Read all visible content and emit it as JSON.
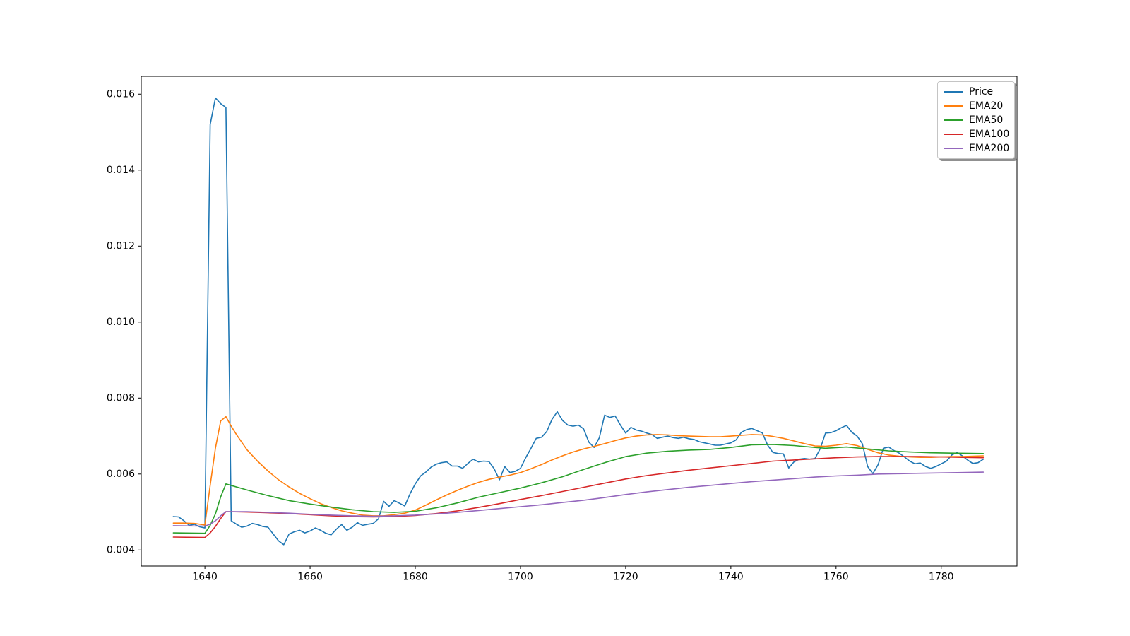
{
  "figure": {
    "background": "#ffffff",
    "axis_color": "#000000"
  },
  "chart_data": {
    "type": "line",
    "title": "",
    "xlabel": "",
    "ylabel": "",
    "grid": false,
    "legend_position": "upper right",
    "xlim": [
      1627.9,
      1794.4
    ],
    "ylim": [
      0.003578,
      0.01647
    ],
    "x_ticks": [
      1640,
      1660,
      1680,
      1700,
      1720,
      1740,
      1760,
      1780
    ],
    "y_ticks": [
      0.004,
      0.006,
      0.008,
      0.01,
      0.012,
      0.014,
      0.016
    ],
    "y_tick_labels": [
      "0.004",
      "0.006",
      "0.008",
      "0.010",
      "0.012",
      "0.014",
      "0.016"
    ],
    "series": [
      {
        "name": "Price",
        "color": "#1f77b4",
        "x0": 1634,
        "dx": 1,
        "values": [
          0.00488,
          0.00487,
          0.00477,
          0.00465,
          0.00468,
          0.00461,
          0.00458,
          0.0152,
          0.0159,
          0.01575,
          0.01565,
          0.00477,
          0.00468,
          0.0046,
          0.00463,
          0.0047,
          0.00467,
          0.00462,
          0.0046,
          0.00442,
          0.00424,
          0.00414,
          0.00442,
          0.00448,
          0.00452,
          0.00445,
          0.0045,
          0.00458,
          0.00452,
          0.00444,
          0.0044,
          0.00455,
          0.00467,
          0.00452,
          0.0046,
          0.00472,
          0.00465,
          0.00468,
          0.0047,
          0.00482,
          0.00528,
          0.00515,
          0.0053,
          0.00523,
          0.00516,
          0.00548,
          0.00574,
          0.00595,
          0.00605,
          0.00618,
          0.00626,
          0.0063,
          0.00632,
          0.00621,
          0.00621,
          0.00615,
          0.00628,
          0.00639,
          0.00632,
          0.00634,
          0.00633,
          0.00614,
          0.00585,
          0.0062,
          0.00604,
          0.00607,
          0.00615,
          0.00643,
          0.00668,
          0.00694,
          0.00697,
          0.00712,
          0.00744,
          0.00764,
          0.00741,
          0.00729,
          0.00726,
          0.00729,
          0.00719,
          0.00684,
          0.0067,
          0.00696,
          0.00755,
          0.00749,
          0.00753,
          0.00729,
          0.00708,
          0.00723,
          0.00716,
          0.00713,
          0.00708,
          0.00704,
          0.00694,
          0.00697,
          0.007,
          0.00696,
          0.00694,
          0.00697,
          0.00693,
          0.00691,
          0.00685,
          0.00682,
          0.00679,
          0.00676,
          0.00676,
          0.00679,
          0.00682,
          0.0069,
          0.0071,
          0.00717,
          0.0072,
          0.00714,
          0.00708,
          0.00676,
          0.00657,
          0.00654,
          0.00653,
          0.00616,
          0.00632,
          0.00639,
          0.00641,
          0.00639,
          0.00641,
          0.00667,
          0.00708,
          0.00709,
          0.00714,
          0.00722,
          0.00728,
          0.0071,
          0.007,
          0.0068,
          0.0062,
          0.00601,
          0.00625,
          0.00668,
          0.00671,
          0.00662,
          0.00655,
          0.00645,
          0.00634,
          0.00627,
          0.00629,
          0.0062,
          0.00615,
          0.0062,
          0.00627,
          0.00634,
          0.0065,
          0.00657,
          0.00648,
          0.00637,
          0.00628,
          0.0063,
          0.00639
        ]
      },
      {
        "name": "EMA20",
        "color": "#ff7f0e",
        "x": [
          1634,
          1636,
          1638,
          1639,
          1640,
          1641,
          1642,
          1643,
          1644,
          1645,
          1646,
          1648,
          1650,
          1652,
          1654,
          1656,
          1658,
          1660,
          1662,
          1664,
          1666,
          1668,
          1670,
          1672,
          1674,
          1676,
          1678,
          1680,
          1682,
          1684,
          1686,
          1688,
          1690,
          1692,
          1694,
          1696,
          1698,
          1700,
          1702,
          1704,
          1706,
          1708,
          1710,
          1712,
          1714,
          1716,
          1718,
          1720,
          1722,
          1724,
          1726,
          1728,
          1730,
          1732,
          1734,
          1736,
          1738,
          1740,
          1742,
          1744,
          1746,
          1748,
          1750,
          1752,
          1754,
          1756,
          1758,
          1760,
          1762,
          1764,
          1766,
          1768,
          1770,
          1772,
          1774,
          1776,
          1778,
          1780,
          1782,
          1784,
          1786,
          1788
        ],
        "values": [
          0.00471,
          0.00471,
          0.0047,
          0.00468,
          0.00466,
          0.0057,
          0.00668,
          0.0074,
          0.00751,
          0.00726,
          0.00704,
          0.00664,
          0.00634,
          0.00608,
          0.00585,
          0.00566,
          0.00549,
          0.00535,
          0.00522,
          0.00512,
          0.00503,
          0.00497,
          0.00492,
          0.0049,
          0.0049,
          0.00493,
          0.00497,
          0.00505,
          0.00518,
          0.00532,
          0.00545,
          0.00557,
          0.00568,
          0.00578,
          0.00586,
          0.00592,
          0.00597,
          0.00604,
          0.00614,
          0.00625,
          0.00637,
          0.00648,
          0.00658,
          0.00666,
          0.00673,
          0.0068,
          0.00688,
          0.00695,
          0.007,
          0.00703,
          0.00704,
          0.00703,
          0.00701,
          0.007,
          0.00699,
          0.00698,
          0.00698,
          0.007,
          0.00702,
          0.00704,
          0.00703,
          0.00699,
          0.00694,
          0.00687,
          0.0068,
          0.00674,
          0.00673,
          0.00676,
          0.0068,
          0.00675,
          0.00665,
          0.00656,
          0.0065,
          0.00647,
          0.00645,
          0.00644,
          0.00644,
          0.00645,
          0.00646,
          0.00646,
          0.00647,
          0.00648
        ]
      },
      {
        "name": "EMA50",
        "color": "#2ca02c",
        "x": [
          1634,
          1640,
          1641,
          1642,
          1643,
          1644,
          1648,
          1652,
          1656,
          1660,
          1664,
          1668,
          1672,
          1676,
          1680,
          1684,
          1688,
          1692,
          1696,
          1700,
          1704,
          1708,
          1712,
          1716,
          1720,
          1724,
          1728,
          1732,
          1736,
          1740,
          1744,
          1748,
          1752,
          1756,
          1758,
          1762,
          1766,
          1770,
          1774,
          1778,
          1782,
          1788
        ],
        "values": [
          0.00445,
          0.00444,
          0.00465,
          0.00495,
          0.0054,
          0.00574,
          0.00558,
          0.00543,
          0.0053,
          0.00521,
          0.00513,
          0.00506,
          0.00501,
          0.00499,
          0.00502,
          0.00511,
          0.00524,
          0.00539,
          0.00551,
          0.00563,
          0.00577,
          0.00593,
          0.00612,
          0.0063,
          0.00646,
          0.00655,
          0.0066,
          0.00663,
          0.00665,
          0.0067,
          0.00677,
          0.00678,
          0.00675,
          0.0067,
          0.00668,
          0.00671,
          0.00666,
          0.00661,
          0.00658,
          0.00656,
          0.00655,
          0.00654
        ]
      },
      {
        "name": "EMA100",
        "color": "#d62728",
        "x": [
          1634,
          1640,
          1641,
          1642,
          1643,
          1644,
          1648,
          1652,
          1656,
          1660,
          1664,
          1668,
          1672,
          1676,
          1680,
          1684,
          1688,
          1692,
          1696,
          1700,
          1704,
          1708,
          1712,
          1716,
          1720,
          1724,
          1728,
          1732,
          1736,
          1740,
          1744,
          1748,
          1752,
          1756,
          1760,
          1764,
          1768,
          1772,
          1776,
          1780,
          1784,
          1788
        ],
        "values": [
          0.00434,
          0.00433,
          0.00445,
          0.00462,
          0.00483,
          0.00501,
          0.005,
          0.00498,
          0.00496,
          0.00493,
          0.0049,
          0.00488,
          0.00487,
          0.00488,
          0.00491,
          0.00496,
          0.00503,
          0.00512,
          0.00522,
          0.00533,
          0.00543,
          0.00554,
          0.00565,
          0.00576,
          0.00587,
          0.00596,
          0.00603,
          0.0061,
          0.00616,
          0.00622,
          0.00628,
          0.00634,
          0.00637,
          0.0064,
          0.00643,
          0.00645,
          0.00646,
          0.00646,
          0.00646,
          0.00645,
          0.00644,
          0.00643
        ]
      },
      {
        "name": "EMA200",
        "color": "#9467bd",
        "x": [
          1634,
          1640,
          1641,
          1642,
          1643,
          1644,
          1648,
          1652,
          1656,
          1660,
          1664,
          1668,
          1672,
          1676,
          1680,
          1684,
          1688,
          1692,
          1696,
          1700,
          1704,
          1708,
          1712,
          1716,
          1720,
          1724,
          1728,
          1732,
          1736,
          1740,
          1744,
          1748,
          1752,
          1756,
          1760,
          1764,
          1768,
          1772,
          1776,
          1780,
          1784,
          1788
        ],
        "values": [
          0.00464,
          0.00463,
          0.00468,
          0.00477,
          0.0049,
          0.00501,
          0.00501,
          0.00499,
          0.00497,
          0.00494,
          0.00492,
          0.0049,
          0.00489,
          0.0049,
          0.00492,
          0.00495,
          0.00499,
          0.00504,
          0.00509,
          0.00514,
          0.00519,
          0.00525,
          0.00531,
          0.00538,
          0.00546,
          0.00553,
          0.00559,
          0.00565,
          0.0057,
          0.00575,
          0.0058,
          0.00584,
          0.00588,
          0.00592,
          0.00595,
          0.00597,
          0.006,
          0.00601,
          0.00602,
          0.00603,
          0.00604,
          0.00605
        ]
      }
    ]
  }
}
